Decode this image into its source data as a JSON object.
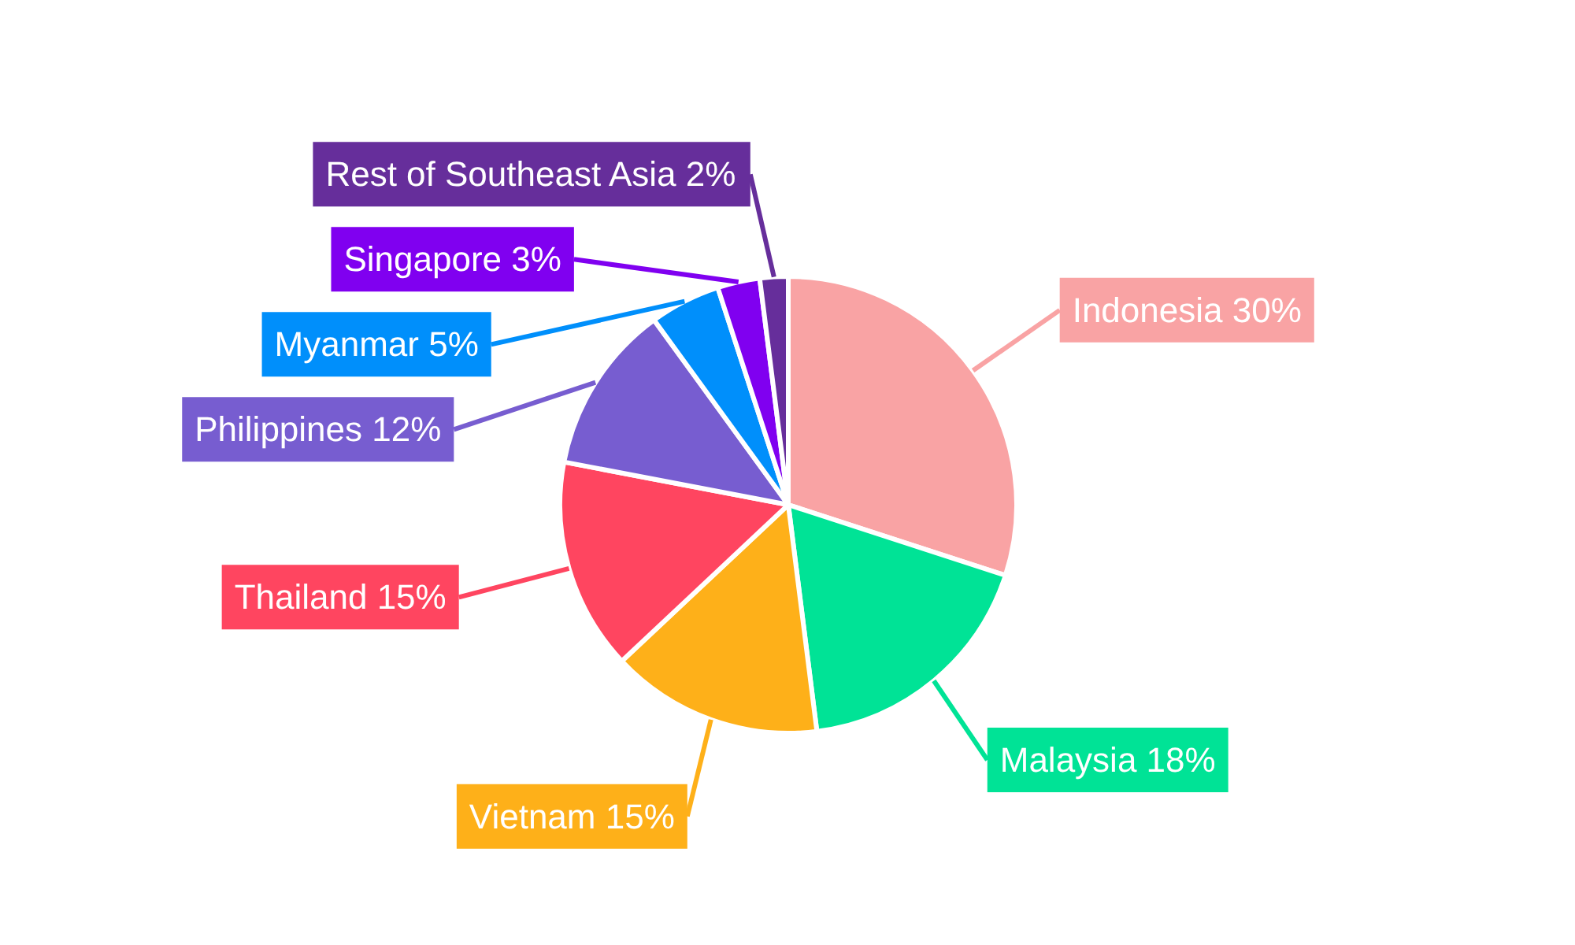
{
  "chart_data": {
    "type": "pie",
    "categories": [
      "Indonesia",
      "Malaysia",
      "Vietnam",
      "Thailand",
      "Philippines",
      "Myanmar",
      "Singapore",
      "Rest of Southeast Asia"
    ],
    "values": [
      30,
      18,
      15,
      15,
      12,
      5,
      3,
      2
    ],
    "colors": [
      "#f9a3a4",
      "#00e396",
      "#feb019",
      "#ff4560",
      "#775dd0",
      "#008ffb",
      "#8000f0",
      "#662e9b"
    ],
    "value_labels": [
      "30%",
      "18%",
      "15%",
      "15%",
      "12%",
      "5%",
      "3%",
      "2%"
    ]
  }
}
